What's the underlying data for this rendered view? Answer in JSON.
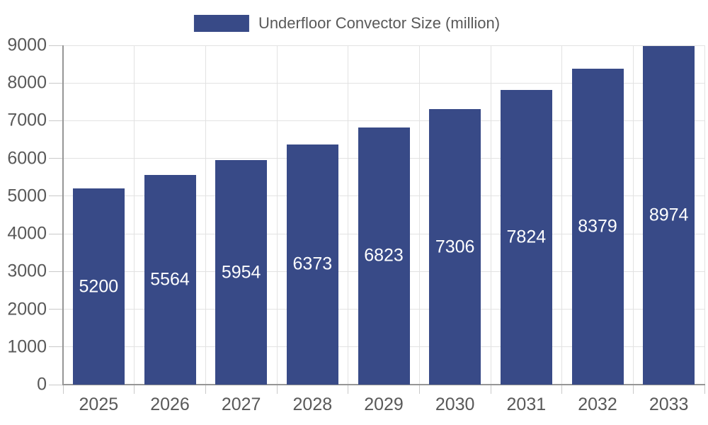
{
  "legend": {
    "label": "Underfloor Convector Size (million)"
  },
  "chart_data": {
    "type": "bar",
    "title": "",
    "categories": [
      "2025",
      "2026",
      "2027",
      "2028",
      "2029",
      "2030",
      "2031",
      "2032",
      "2033"
    ],
    "values": [
      5200,
      5564,
      5954,
      6373,
      6823,
      7306,
      7824,
      8379,
      8974
    ],
    "series_name": "Underfloor Convector Size (million)",
    "xlabel": "",
    "ylabel": "",
    "ylim": [
      0,
      9000
    ],
    "yticks": [
      0,
      1000,
      2000,
      3000,
      4000,
      5000,
      6000,
      7000,
      8000,
      9000
    ],
    "grid": true,
    "legend_position": "top-center",
    "bar_value_labels": "inside-center-white"
  },
  "colors": {
    "bar": "#384A87",
    "grid": "#E2E2E2",
    "axis_line": "#969696",
    "tick": "#C9C9C9",
    "axis_text": "#595959",
    "legend_text": "#595959",
    "bar_label_text": "#FFFFFF",
    "background": "#FFFFFF"
  }
}
